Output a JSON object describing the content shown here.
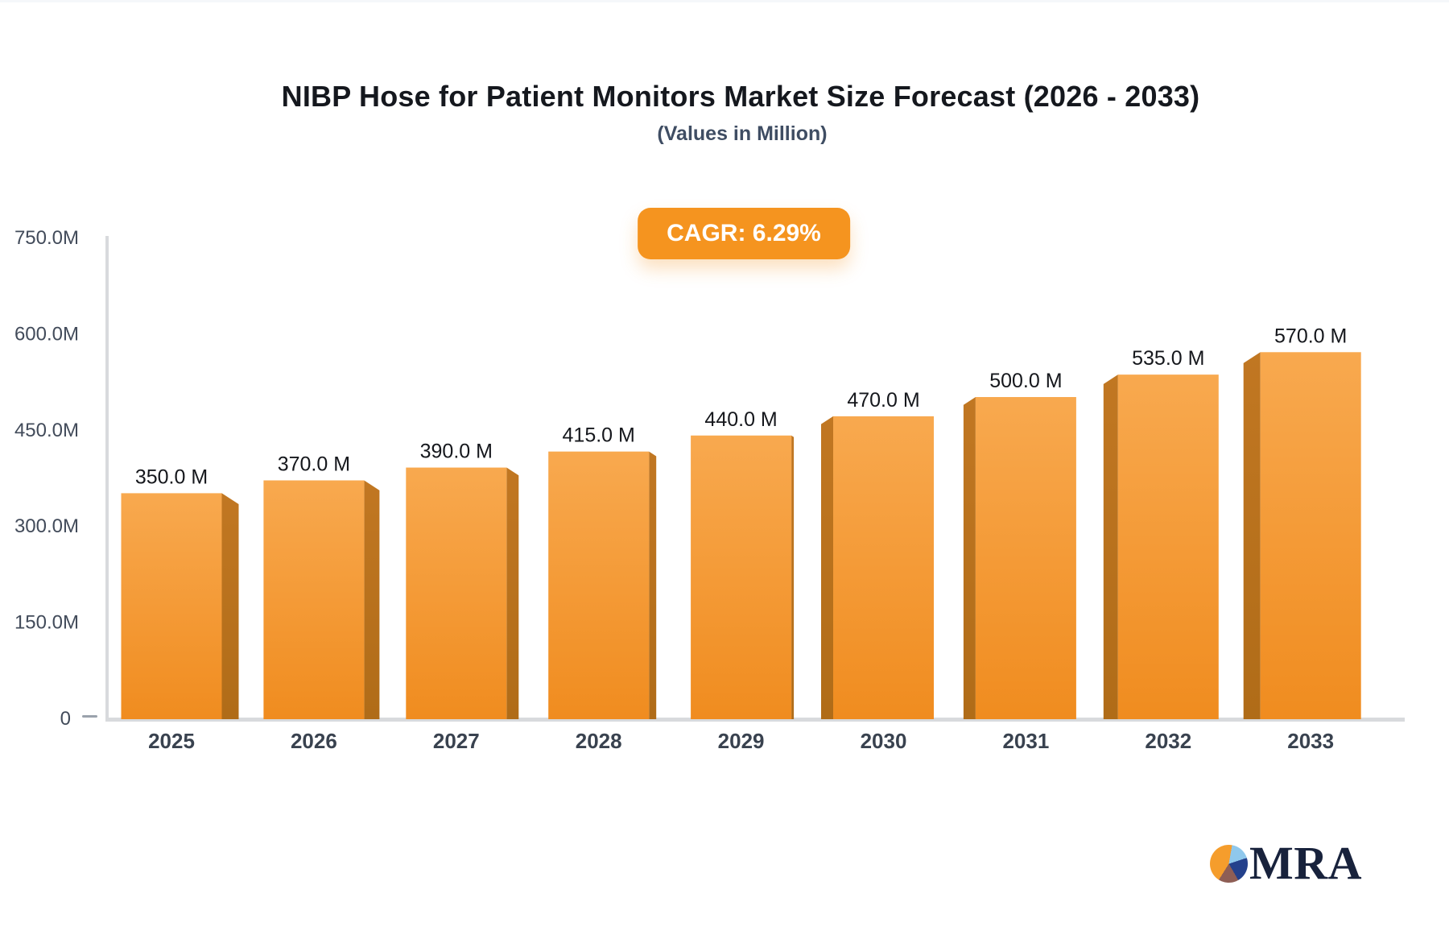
{
  "header": {
    "title": "NIBP Hose for Patient Monitors Market Size Forecast (2026 - 2033)",
    "subtitle": "(Values in Million)",
    "cagr_badge": "CAGR: 6.29%"
  },
  "branding": {
    "logo_icon": "pie-chart-logo",
    "logo_text": "MRA"
  },
  "colors": {
    "bar_front_top": "#f8a94f",
    "bar_front_bottom": "#f08c1f",
    "bar_side_top": "#c17722",
    "bar_side_bottom": "#b06c18",
    "axis_line": "#d8dadd",
    "zero_tick": "#9aa2ac",
    "badge_bg": "#f5941f",
    "badge_text": "#ffffff",
    "title_text": "#15181e",
    "subtitle_text": "#3f4d63",
    "value_text": "#15171c",
    "x_label_text": "#39424f",
    "y_label_text": "#424b5a",
    "logo_orange": "#f59d2c",
    "logo_lightblue": "#8fc8ec",
    "logo_blue": "#24418c",
    "logo_maroon": "#8e5e55",
    "logo_navy": "#18223c"
  },
  "chart_data": {
    "type": "bar",
    "title": "NIBP Hose for Patient Monitors Market Size Forecast (2026 - 2033)",
    "subtitle": "(Values in Million)",
    "cagr": "CAGR: 6.29%",
    "categories": [
      "2025",
      "2026",
      "2027",
      "2028",
      "2029",
      "2030",
      "2031",
      "2032",
      "2033"
    ],
    "values": [
      350.0,
      370.0,
      390.0,
      415.0,
      440.0,
      470.0,
      500.0,
      535.0,
      570.0
    ],
    "value_labels": [
      "350.0 M",
      "370.0 M",
      "390.0 M",
      "415.0 M",
      "440.0 M",
      "470.0 M",
      "500.0 M",
      "535.0 M",
      "570.0 M"
    ],
    "y_ticks": [
      {
        "value": 750,
        "label": "750.0M"
      },
      {
        "value": 600,
        "label": "600.0M"
      },
      {
        "value": 450,
        "label": "450.0M"
      },
      {
        "value": 300,
        "label": "300.0M"
      },
      {
        "value": 150,
        "label": "150.0M"
      },
      {
        "value": 0,
        "label": "0"
      }
    ],
    "ylim": [
      0,
      750
    ],
    "xlabel": "",
    "ylabel": "",
    "grid": false,
    "legend": false,
    "style": "3d-bars, orange gradient, perspective side faces toward center"
  }
}
